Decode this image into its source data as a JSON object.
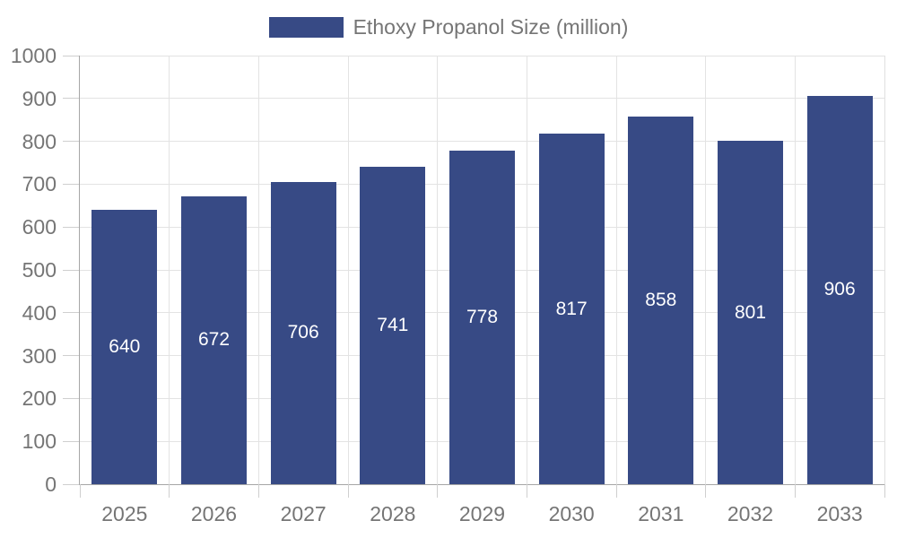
{
  "legend": {
    "label": "Ethoxy Propanol Size (million)"
  },
  "colors": {
    "bar": "#374a85",
    "grid": "#e3e3e3",
    "axis": "#a6a6a6",
    "tick": "#cfcfcf",
    "axis_text": "#757575",
    "value_text": "#ffffff",
    "background": "#ffffff"
  },
  "chart_data": {
    "type": "bar",
    "title": "Ethoxy Propanol Size (million)",
    "categories": [
      "2025",
      "2026",
      "2027",
      "2028",
      "2029",
      "2030",
      "2031",
      "2032",
      "2033"
    ],
    "values": [
      640,
      672,
      706,
      741,
      778,
      817,
      858,
      801,
      906
    ],
    "xlabel": "",
    "ylabel": "",
    "ylim": [
      0,
      1000
    ],
    "yticks": [
      0,
      100,
      200,
      300,
      400,
      500,
      600,
      700,
      800,
      900,
      1000
    ],
    "grid": true,
    "legend_position": "top",
    "value_labels": "inside-center"
  }
}
